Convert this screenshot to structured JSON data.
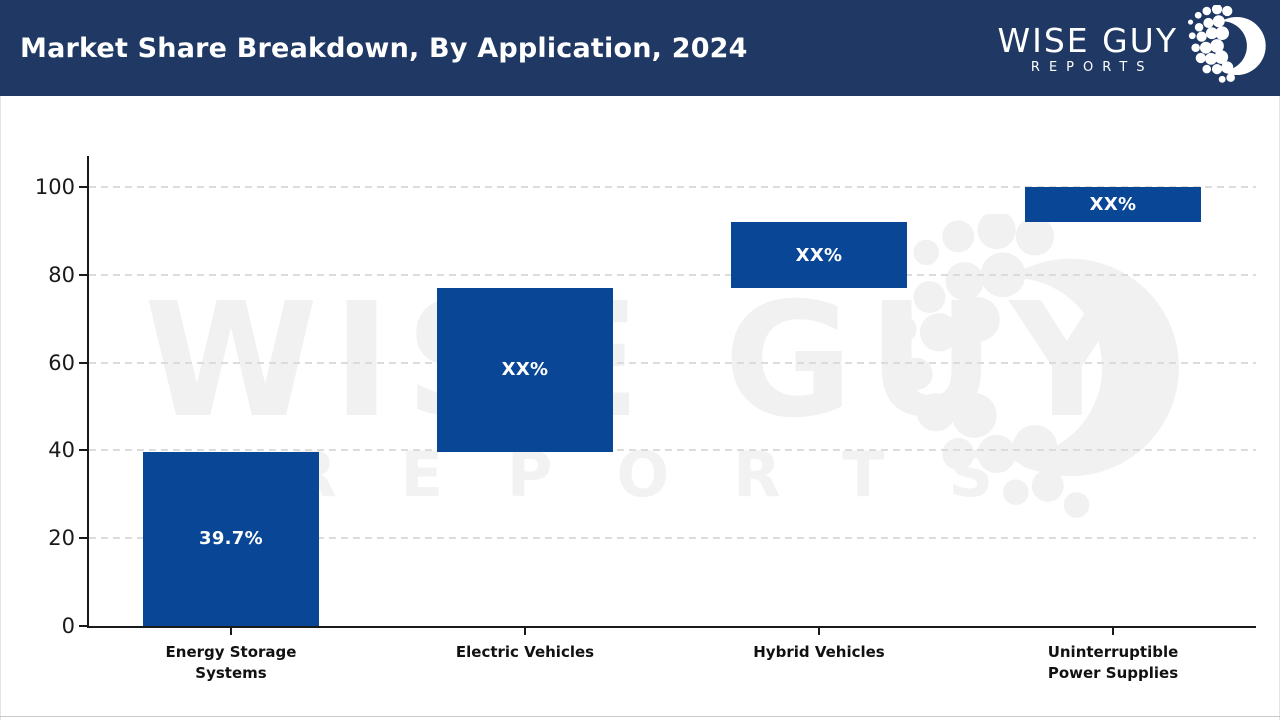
{
  "header": {
    "title": "Market Share Breakdown, By Application, 2024",
    "logo": {
      "wordmark": "WISE GUY",
      "subtext": "REPORTS",
      "head_icon": "dotted-head-profile-icon"
    }
  },
  "watermark": {
    "line1": "WISE GUY",
    "line2": "REPORTS",
    "head_icon": "dotted-head-profile-watermark"
  },
  "chart_data": {
    "type": "bar",
    "subtype": "waterfall-stacked-percentage",
    "title": "Market Share Breakdown, By Application, 2024",
    "categories": [
      "Energy Storage Systems",
      "Electric Vehicles",
      "Hybrid Vehicles",
      "Uninterruptible Power Supplies"
    ],
    "category_label_lines": [
      [
        "Energy Storage",
        "Systems"
      ],
      [
        "Electric Vehicles"
      ],
      [
        "Hybrid Vehicles"
      ],
      [
        "Uninterruptible",
        "Power Supplies"
      ]
    ],
    "segments": [
      {
        "category": "Energy Storage Systems",
        "start": 0,
        "end": 39.7,
        "value": 39.7,
        "value_label": "39.7%"
      },
      {
        "category": "Electric Vehicles",
        "start": 39.7,
        "end": 77.0,
        "value": 37.3,
        "value_label": "XX%"
      },
      {
        "category": "Hybrid Vehicles",
        "start": 77.0,
        "end": 92.0,
        "value": 15.0,
        "value_label": "XX%"
      },
      {
        "category": "Uninterruptible Power Supplies",
        "start": 92.0,
        "end": 100.0,
        "value": 8.0,
        "value_label": "XX%"
      }
    ],
    "yticks": [
      0,
      20,
      40,
      60,
      80,
      100
    ],
    "ylim": [
      0,
      100
    ],
    "xlabel": "",
    "ylabel": "",
    "grid": "horizontal-dashed",
    "legend": "none",
    "colors": {
      "bar": "#0a4696",
      "bar_label": "#ffffff",
      "grid": "#dcdcdc",
      "axis": "#1a1a1a",
      "header_bg": "#1f3864",
      "header_text": "#ffffff",
      "watermark": "#f1f1f1"
    }
  }
}
